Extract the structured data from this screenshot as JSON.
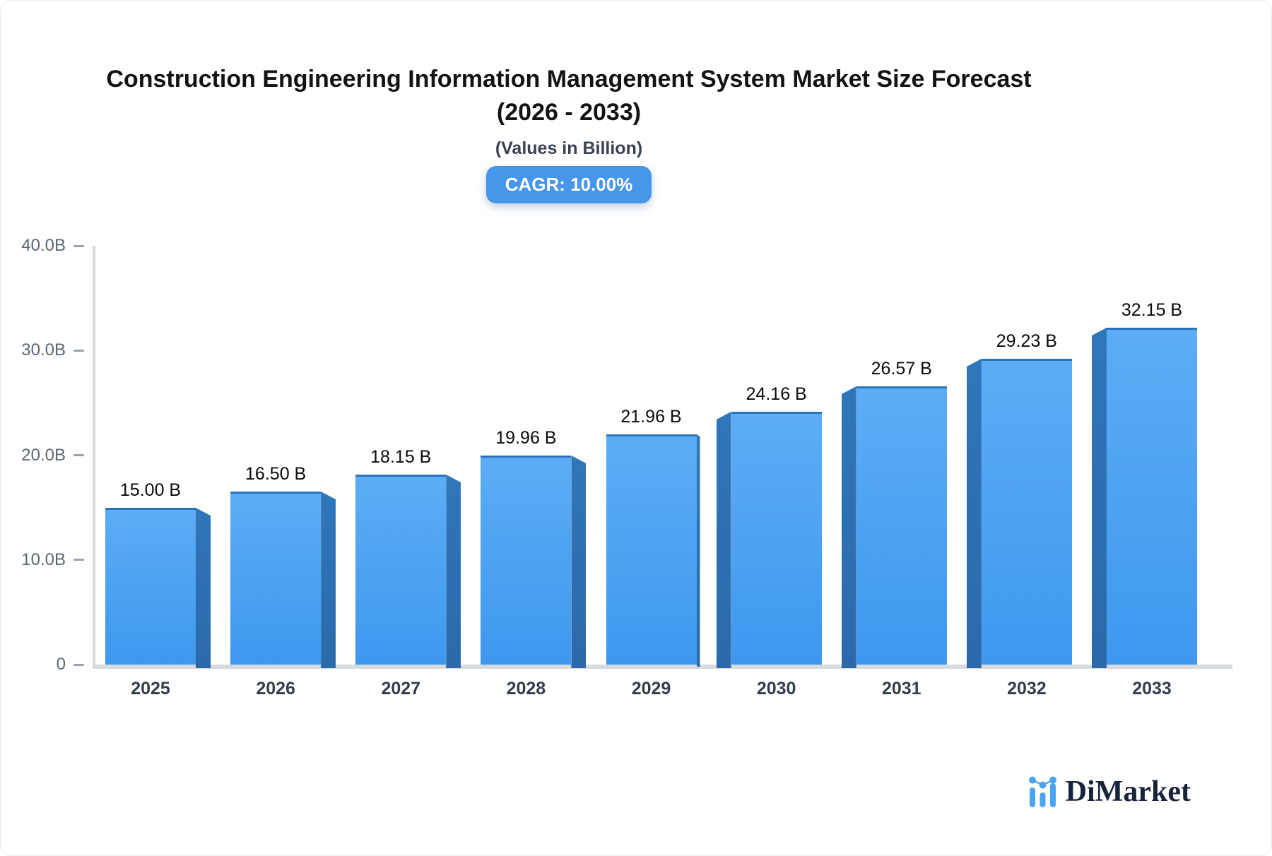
{
  "header": {
    "title_lines": [
      "Construction Engineering Information Management System Market Size Forecast",
      "(2026 - 2033)"
    ],
    "subtitle": "(Values in Billion)",
    "cagr_badge": "CAGR: 10.00%"
  },
  "chart_data": {
    "type": "bar",
    "title": "Construction Engineering Information Management System Market Size Forecast (2026 - 2033)",
    "subtitle": "(Values in Billion)",
    "cagr_percent": "10.00%",
    "unit": "Billion",
    "categories": [
      "2025",
      "2026",
      "2027",
      "2028",
      "2029",
      "2030",
      "2031",
      "2032",
      "2033"
    ],
    "values": [
      15.0,
      16.5,
      18.15,
      19.96,
      21.96,
      24.16,
      26.57,
      29.23,
      32.15
    ],
    "value_labels": [
      "15.00 B",
      "16.50 B",
      "18.15 B",
      "19.96 B",
      "21.96 B",
      "24.16 B",
      "26.57 B",
      "29.23 B",
      "32.15 B"
    ],
    "ylim": [
      0,
      40
    ],
    "yticks": [
      {
        "value": 0,
        "label": "0"
      },
      {
        "value": 10,
        "label": "10.0B"
      },
      {
        "value": 20,
        "label": "20.0B"
      },
      {
        "value": 30,
        "label": "30.0B"
      },
      {
        "value": 40,
        "label": "40.0B"
      }
    ],
    "grid": false,
    "legend": null,
    "bar_color_top": "#5cadf4",
    "bar_color_bottom": "#3e98ef",
    "bar_side_color": "#2f74b8",
    "accent_color": "#4696ea"
  },
  "branding": {
    "logo_text": "DiMarket",
    "logo_icon": "bar-line-chart-icon",
    "logo_color": "#4aa4f4",
    "logo_text_color": "#18243c"
  }
}
